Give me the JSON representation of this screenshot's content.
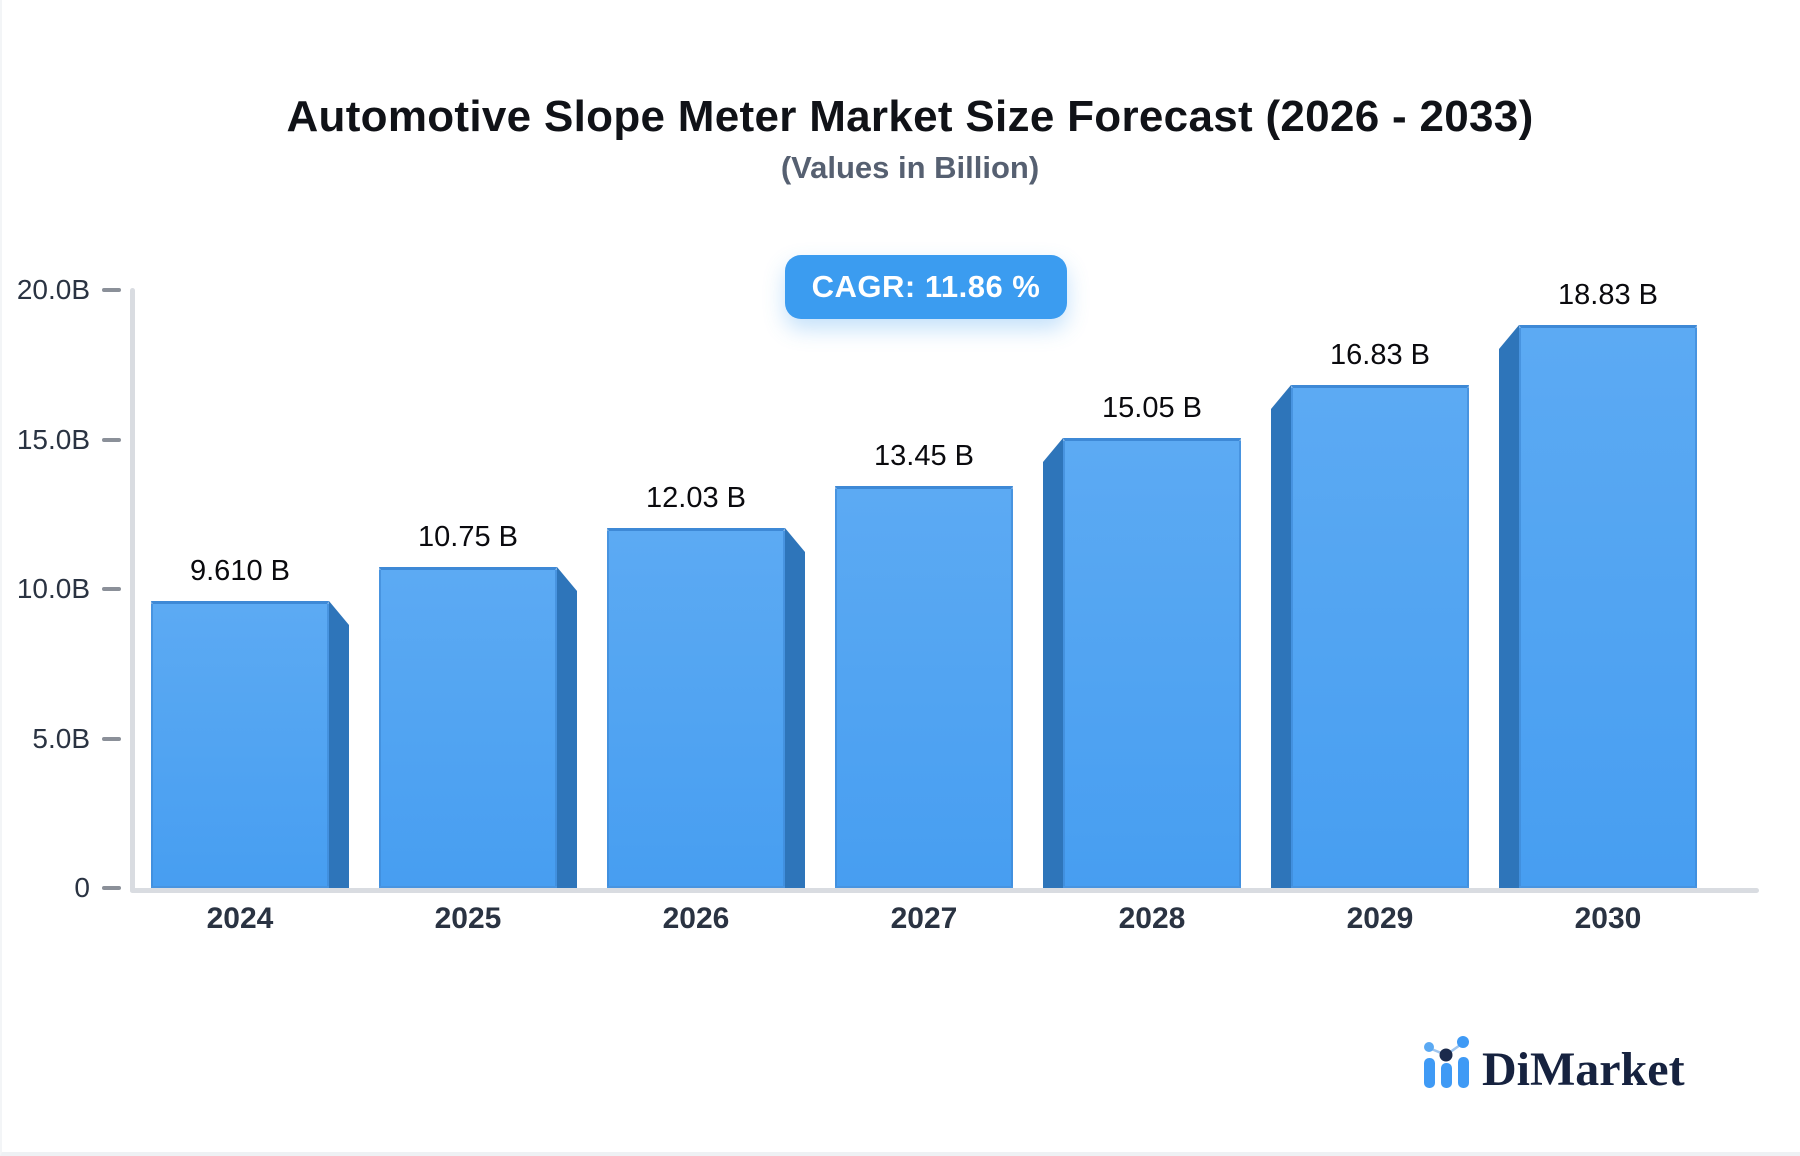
{
  "header": {
    "title": "Automotive Slope Meter Market Size Forecast (2026 - 2033)",
    "subtitle": "(Values in Billion)",
    "badge": "CAGR: 11.86 %"
  },
  "chart_data": {
    "type": "bar",
    "style": "3d-center-perspective",
    "title": "Automotive Slope Meter Market Size Forecast (2026 - 2033)",
    "subtitle": "(Values in Billion)",
    "annotation": "CAGR: 11.86 %",
    "categories": [
      "2024",
      "2025",
      "2026",
      "2027",
      "2028",
      "2029",
      "2030"
    ],
    "values": [
      9.61,
      10.75,
      12.03,
      13.45,
      15.05,
      16.83,
      18.83
    ],
    "value_labels": [
      "9.610 B",
      "10.75 B",
      "12.03 B",
      "13.45 B",
      "15.05 B",
      "16.83 B",
      "18.83 B"
    ],
    "xlabel": "",
    "ylabel": "",
    "ylim": [
      0,
      20
    ],
    "y_ticks": [
      {
        "value": 20,
        "label": "20.0B"
      },
      {
        "value": 15,
        "label": "15.0B"
      },
      {
        "value": 10,
        "label": "10.0B"
      },
      {
        "value": 5,
        "label": "5.0B"
      },
      {
        "value": 0,
        "label": "0"
      }
    ],
    "grid": false,
    "legend": null
  },
  "branding": {
    "name": "DiMarket",
    "icon": "bar-chart-with-dots-icon"
  },
  "colors": {
    "bar_face_top": "#5caaf3",
    "bar_face_bottom": "#479ef1",
    "bar_edge": "#3e89d6",
    "bar_side": "#2e75ba",
    "badge_bg": "#3b9cf0",
    "badge_text": "#ffffff",
    "axis_line": "#d9dce1",
    "tick": "#8b9099",
    "axis_text": "#2a3342",
    "value_text": "#0a0a0e",
    "title_text": "#101217",
    "subtitle_text": "#566071",
    "logo_blue": "#3f9af5",
    "logo_navy": "#1b2a4c"
  }
}
